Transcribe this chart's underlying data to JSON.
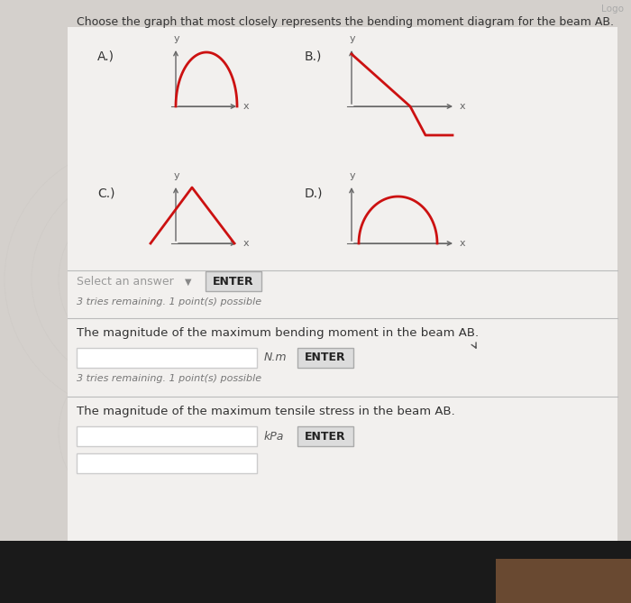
{
  "bg_color": "#d4d0cc",
  "content_bg": "#f2f0ee",
  "title": "Choose the graph that most closely represents the bending moment diagram for the beam AB.",
  "title_fontsize": 9.0,
  "logo_text": "Logo",
  "diagram_color": "#cc1111",
  "axis_color": "#666666",
  "label_color": "#333333",
  "select_text": "Select an answer",
  "enter_text": "ENTER",
  "tries_text": "3 tries remaining. 1 point(s) possible",
  "q2_text": "The magnitude of the maximum bending moment in the beam AB.",
  "q2_unit": "N.m",
  "q3_text": "The magnitude of the maximum tensile stress in the beam AB.",
  "q3_unit": "kPa",
  "panel_A_label": "A.)",
  "panel_B_label": "B.)",
  "panel_C_label": "C.)",
  "panel_D_label": "D.)",
  "dark_bottom_color": "#1a1a1a",
  "separator_color": "#bbbbbb",
  "enter_btn_color": "#dcdcdc",
  "enter_btn_border": "#aaaaaa",
  "input_box_color": "#ffffff",
  "input_box_border": "#cccccc",
  "cursor_color": "#555555"
}
